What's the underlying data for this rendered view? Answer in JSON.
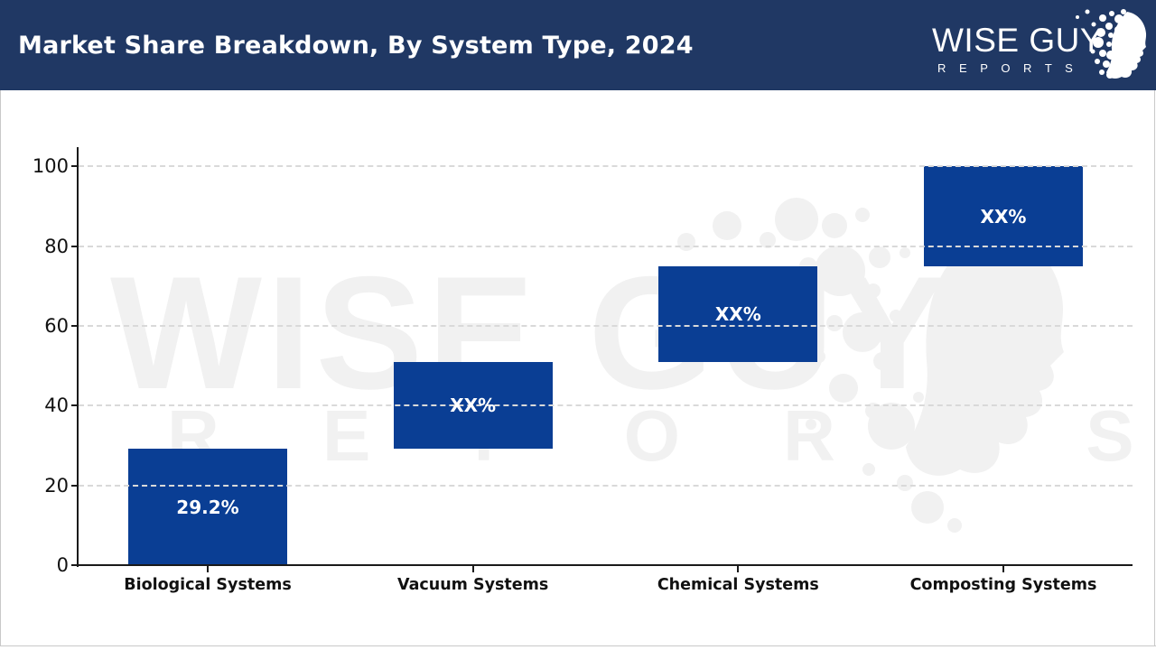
{
  "page": {
    "bg": "#ffffff",
    "border_color": "#c9c9c9"
  },
  "header": {
    "title": "Market Share Breakdown, By System Type, 2024",
    "bg_color": "#203864",
    "text_color": "#ffffff",
    "logo": {
      "line1": "WISE GUY",
      "line2": "R E P O R T S"
    }
  },
  "watermark": {
    "line1": "WISE GUY",
    "line2": "R E P O R T S",
    "color": "#f1f1f1"
  },
  "chart_data": {
    "type": "bar",
    "variant": "waterfall",
    "title": "Market Share Breakdown, By System Type, 2024",
    "categories": [
      "Biological Systems",
      "Vacuum Systems",
      "Chemical Systems",
      "Composting Systems"
    ],
    "segments": [
      {
        "category": "Biological Systems",
        "start": 0,
        "end": 29.2,
        "label": "29.2%"
      },
      {
        "category": "Vacuum Systems",
        "start": 29.2,
        "end": 51,
        "label": "XX%"
      },
      {
        "category": "Chemical Systems",
        "start": 51,
        "end": 75,
        "label": "XX%"
      },
      {
        "category": "Composting Systems",
        "start": 75,
        "end": 100,
        "label": "XX%"
      }
    ],
    "yticks": [
      0,
      20,
      40,
      60,
      80,
      100
    ],
    "ylim": [
      0,
      105
    ],
    "xlabel": "",
    "ylabel": "",
    "grid": {
      "axis": "y",
      "style": "dashed",
      "color": "#d9d9d9"
    },
    "legend": "none",
    "bar_color": "#0a3e94",
    "bar_label_color": "#ffffff",
    "axis_color": "#1a1a1a",
    "tick_label_color": "#111111"
  }
}
